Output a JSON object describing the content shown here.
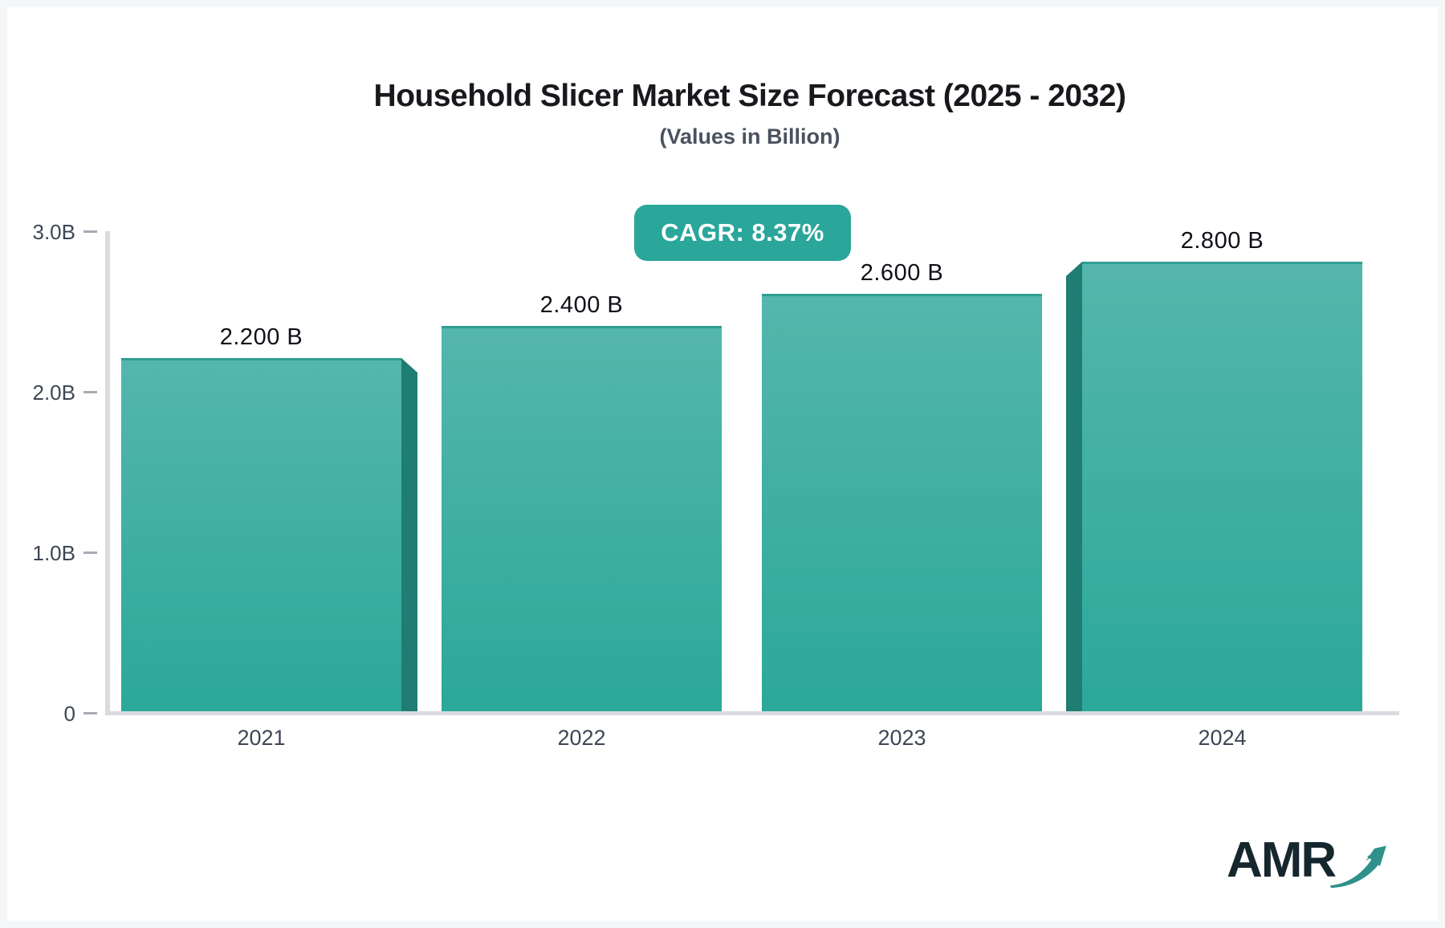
{
  "header": {
    "title": "Household Slicer Market Size Forecast (2025 - 2032)",
    "subtitle": "(Values in Billion)"
  },
  "badge": {
    "label": "CAGR: 8.37%",
    "color": "#2aa69b"
  },
  "logo": {
    "text": "AMR",
    "arrow_icon": "growth-arrow-icon",
    "text_color": "#16262d",
    "arrow_color": "#2e918b"
  },
  "colors": {
    "bar_top": "#55b6ac",
    "bar_bottom": "#2ba89a",
    "bar_edge": "#2f9e93",
    "bar_3d_side": "#1f7d73",
    "axis_line": "#d9dbdf",
    "tick_dash": "#a7acb4",
    "axis_text": "#3e4654",
    "card_bg": "#ffffff",
    "page_bg": "#f4f6f8"
  },
  "chart_data": {
    "type": "bar",
    "title": "Household Slicer Market Size Forecast (2025 - 2032)",
    "subtitle": "(Values in Billion)",
    "categories": [
      "2021",
      "2022",
      "2023",
      "2024"
    ],
    "values": [
      2.2,
      2.4,
      2.6,
      2.8
    ],
    "value_labels": [
      "2.200 B",
      "2.400 B",
      "2.600 B",
      "2.800 B"
    ],
    "unit": "Billion",
    "cagr": "8.37%",
    "xlabel": "",
    "ylabel": "",
    "ylim": [
      0,
      3
    ],
    "yticks": [
      {
        "label": "3.0B",
        "value": 3
      },
      {
        "label": "2.0B",
        "value": 2
      },
      {
        "label": "1.0B",
        "value": 1
      },
      {
        "label": "0",
        "value": 0
      }
    ],
    "grid": false,
    "legend": null,
    "bars_3d_side": [
      "right",
      null,
      null,
      "left"
    ]
  }
}
